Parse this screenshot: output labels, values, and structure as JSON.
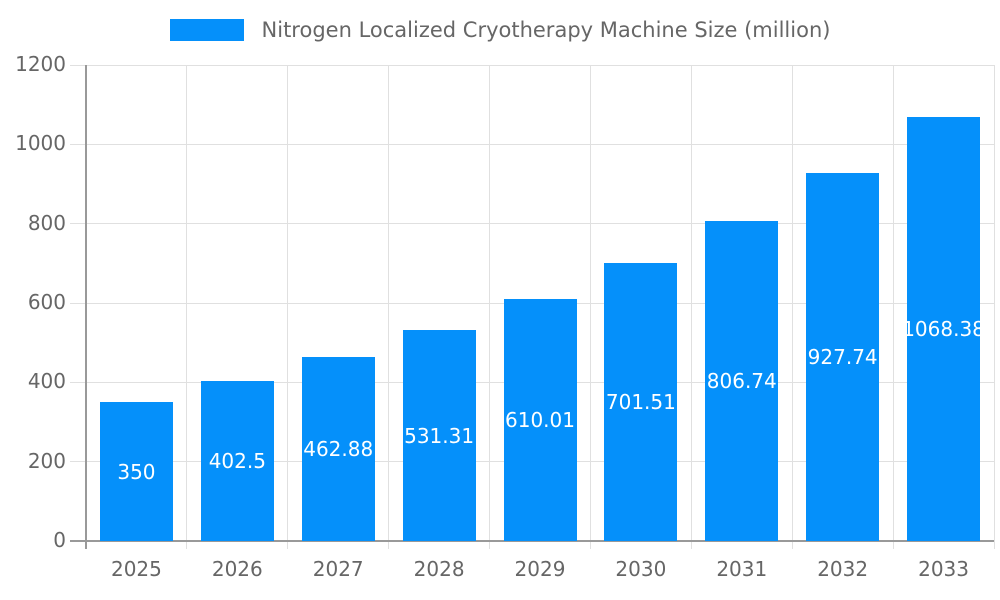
{
  "chart_data": {
    "type": "bar",
    "title": "Nitrogen Localized Cryotherapy Machine Size (million)",
    "legend": {
      "label": "Nitrogen Localized Cryotherapy Machine Size (million)",
      "position": "top"
    },
    "categories": [
      "2025",
      "2026",
      "2027",
      "2028",
      "2029",
      "2030",
      "2031",
      "2032",
      "2033"
    ],
    "series": [
      {
        "name": "Nitrogen Localized Cryotherapy Machine Size (million)",
        "values": [
          350,
          402.5,
          462.88,
          531.31,
          610.01,
          701.51,
          806.74,
          927.74,
          1068.38
        ]
      }
    ],
    "bar_labels": [
      "350",
      "402.5",
      "462.88",
      "531.31",
      "610.01",
      "701.51",
      "806.74",
      "927.74",
      "1068.38"
    ],
    "xlabel": "",
    "ylabel": "",
    "ylim": [
      0,
      1200
    ],
    "yticks": [
      0,
      200,
      400,
      600,
      800,
      1000,
      1200
    ],
    "grid": true,
    "colors": {
      "bar": "#0590fa",
      "bar_label_text": "#ffffff",
      "grid": "#e0e0e0",
      "axis": "#999999",
      "tick_label": "#666666",
      "title": "#666666",
      "background": "#ffffff"
    }
  }
}
